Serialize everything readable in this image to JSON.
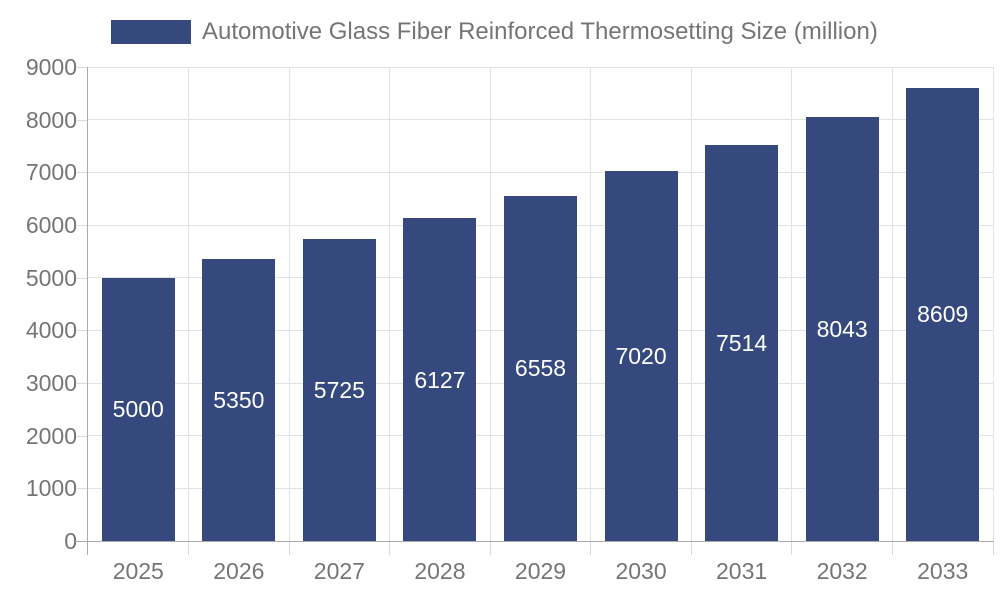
{
  "legend": {
    "label": "Automotive Glass Fiber Reinforced Thermosetting Size (million)"
  },
  "chart_data": {
    "type": "bar",
    "title": "",
    "series_name": "Automotive Glass Fiber Reinforced Thermosetting Size (million)",
    "categories": [
      "2025",
      "2026",
      "2027",
      "2028",
      "2029",
      "2030",
      "2031",
      "2032",
      "2033"
    ],
    "values": [
      5000,
      5350,
      5725,
      6127,
      6558,
      7020,
      7514,
      8043,
      8609
    ],
    "xlabel": "",
    "ylabel": "",
    "ylim": [
      0,
      9000
    ],
    "y_ticks": [
      0,
      1000,
      2000,
      3000,
      4000,
      5000,
      6000,
      7000,
      8000,
      9000
    ],
    "grid": true,
    "legend_position": "top-left",
    "bar_color": "#36497F",
    "bar_label_color": "#FFFFFF",
    "axis_text_color": "#757575",
    "grid_color": "#E3E3E3",
    "axis_line_color": "#AAAAAA"
  }
}
